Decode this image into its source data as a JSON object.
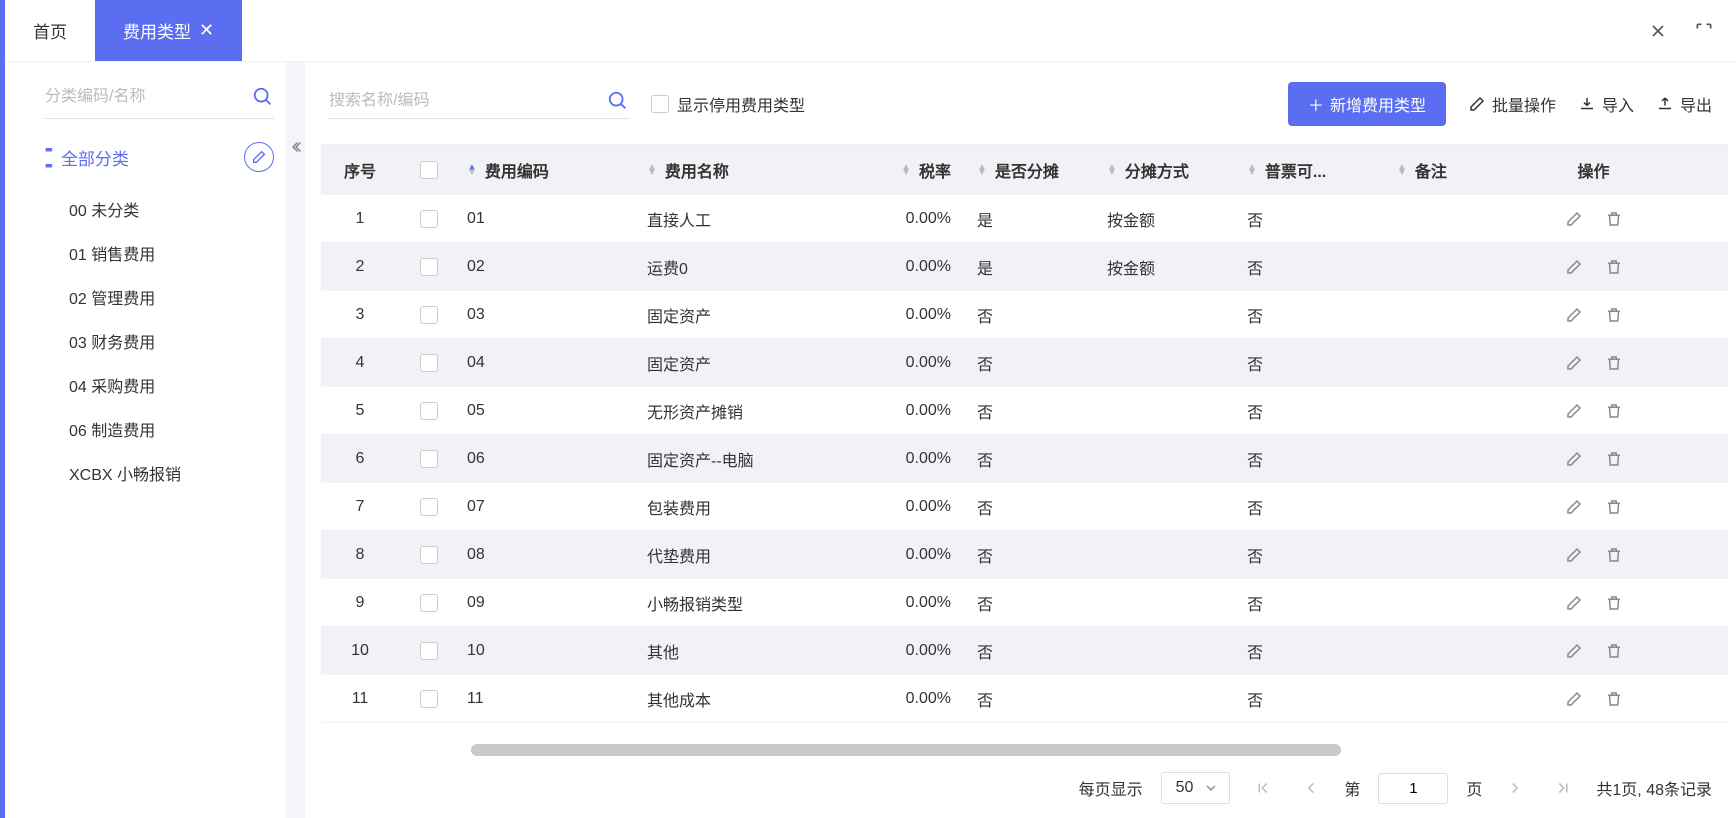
{
  "colors": {
    "primary": "#5b6df0",
    "header_bg": "#f1f2f6",
    "row_stripe": "#f1f2f6"
  },
  "tabs": {
    "home": "首页",
    "active": "费用类型"
  },
  "sidebar": {
    "search_placeholder": "分类编码/名称",
    "all_label": "全部分类",
    "items": [
      {
        "label": "00 未分类"
      },
      {
        "label": "01 销售费用"
      },
      {
        "label": "02 管理费用"
      },
      {
        "label": "03 财务费用"
      },
      {
        "label": "04 采购费用"
      },
      {
        "label": "06 制造费用"
      },
      {
        "label": "XCBX 小畅报销"
      }
    ]
  },
  "toolbar": {
    "search_placeholder": "搜索名称/编码",
    "show_disabled": "显示停用费用类型",
    "add_button": "新增费用类型",
    "batch": "批量操作",
    "import": "导入",
    "export": "导出"
  },
  "table": {
    "headers": {
      "idx": "序号",
      "code": "费用编码",
      "name": "费用名称",
      "rate": "税率",
      "ft": "是否分摊",
      "ftfs": "分摊方式",
      "pk": "普票可...",
      "bz": "备注",
      "op": "操作"
    },
    "rows": [
      {
        "idx": "1",
        "code": "01",
        "name": "直接人工",
        "rate": "0.00%",
        "ft": "是",
        "ftfs": "按金额",
        "pk": "否"
      },
      {
        "idx": "2",
        "code": "02",
        "name": "运费0",
        "rate": "0.00%",
        "ft": "是",
        "ftfs": "按金额",
        "pk": "否"
      },
      {
        "idx": "3",
        "code": "03",
        "name": "固定资产",
        "rate": "0.00%",
        "ft": "否",
        "ftfs": "",
        "pk": "否"
      },
      {
        "idx": "4",
        "code": "04",
        "name": "固定资产",
        "rate": "0.00%",
        "ft": "否",
        "ftfs": "",
        "pk": "否"
      },
      {
        "idx": "5",
        "code": "05",
        "name": "无形资产摊销",
        "rate": "0.00%",
        "ft": "否",
        "ftfs": "",
        "pk": "否"
      },
      {
        "idx": "6",
        "code": "06",
        "name": "固定资产--电脑",
        "rate": "0.00%",
        "ft": "否",
        "ftfs": "",
        "pk": "否"
      },
      {
        "idx": "7",
        "code": "07",
        "name": "包装费用",
        "rate": "0.00%",
        "ft": "否",
        "ftfs": "",
        "pk": "否"
      },
      {
        "idx": "8",
        "code": "08",
        "name": "代垫费用",
        "rate": "0.00%",
        "ft": "否",
        "ftfs": "",
        "pk": "否"
      },
      {
        "idx": "9",
        "code": "09",
        "name": "小畅报销类型",
        "rate": "0.00%",
        "ft": "否",
        "ftfs": "",
        "pk": "否"
      },
      {
        "idx": "10",
        "code": "10",
        "name": "其他",
        "rate": "0.00%",
        "ft": "否",
        "ftfs": "",
        "pk": "否"
      },
      {
        "idx": "11",
        "code": "11",
        "name": "其他成本",
        "rate": "0.00%",
        "ft": "否",
        "ftfs": "",
        "pk": "否"
      }
    ]
  },
  "pager": {
    "per_page_label": "每页显示",
    "per_page_value": "50",
    "page_prefix": "第",
    "page_value": "1",
    "page_suffix": "页",
    "summary": "共1页, 48条记录"
  }
}
